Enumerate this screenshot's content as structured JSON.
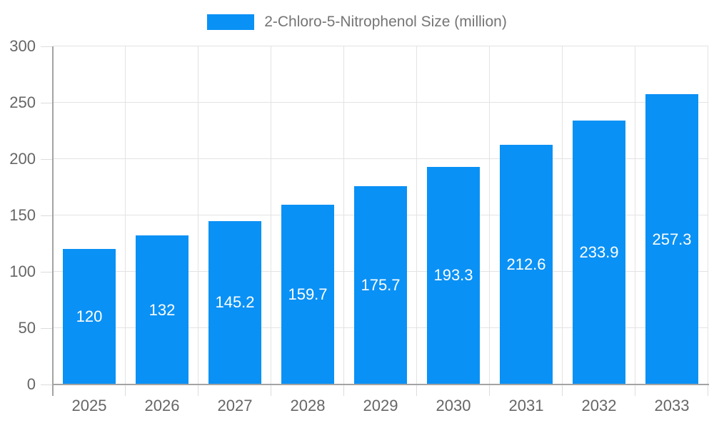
{
  "legend": {
    "label": "2-Chloro-5-Nitrophenol Size (million)"
  },
  "chart_data": {
    "type": "bar",
    "title": "2-Chloro-5-Nitrophenol Size (million)",
    "categories": [
      "2025",
      "2026",
      "2027",
      "2028",
      "2029",
      "2030",
      "2031",
      "2032",
      "2033"
    ],
    "values": [
      120,
      132,
      145.2,
      159.7,
      175.7,
      193.3,
      212.6,
      233.9,
      257.3
    ],
    "series": [
      {
        "name": "2-Chloro-5-Nitrophenol Size (million)",
        "values": [
          120,
          132,
          145.2,
          159.7,
          175.7,
          193.3,
          212.6,
          233.9,
          257.3
        ]
      }
    ],
    "xlabel": "",
    "ylabel": "",
    "ylim": [
      0,
      300
    ],
    "ytick_step": 50,
    "grid": true,
    "legend_position": "top-center",
    "value_labels_position": "inside-center",
    "colors": {
      "bar": "#0A91F5",
      "grid": "#e3e3e3",
      "axis": "#a3a3a3",
      "tick": "#dcdcdc",
      "tick_label": "#666666",
      "legend_text": "#757575",
      "value_label": "#ffffff",
      "background": "#ffffff"
    }
  }
}
